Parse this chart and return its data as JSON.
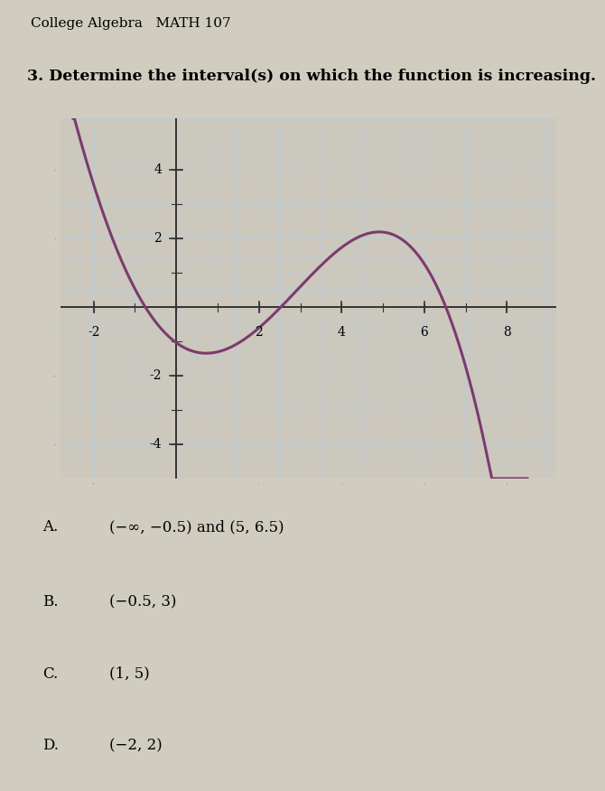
{
  "header_line1": "College Algebra   MATH 107",
  "question": "3. Determine the interval(s) on which the function is increasing.",
  "answer_choices": [
    {
      "label": "A.",
      "text": "(−∞, −0.5) and (5, 6.5)"
    },
    {
      "label": "B.",
      "text": "(−0.5, 3)"
    },
    {
      "label": "C.",
      "text": "(1, 5)"
    },
    {
      "label": "D.",
      "text": "(−2, 2)"
    }
  ],
  "xlim": [
    -2.8,
    9.2
  ],
  "ylim": [
    -5.0,
    5.5
  ],
  "xticks": [
    -2,
    2,
    4,
    6,
    8
  ],
  "yticks": [
    -4,
    -2,
    2,
    4
  ],
  "curve_color": "#7B3B6E",
  "curve_linewidth": 2.2,
  "grid_color": "#b8cdd8",
  "axis_color": "#333333",
  "bg_color": "#d8d4cc",
  "plot_bg_color": "#ccc8be",
  "fig_bg_color": "#d0ccbf"
}
